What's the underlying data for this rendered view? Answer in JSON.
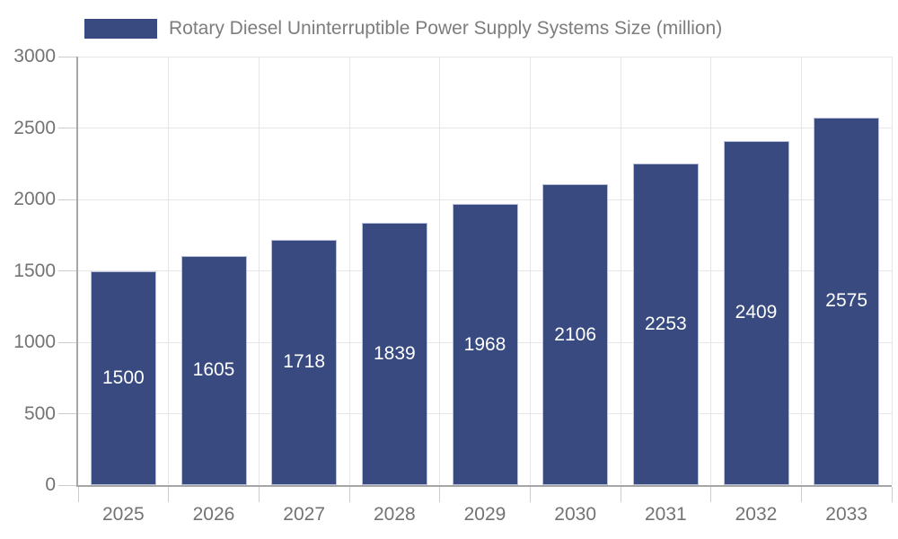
{
  "chart_data": {
    "type": "bar",
    "title": "Rotary Diesel Uninterruptible Power Supply Systems Size (million)",
    "categories": [
      "2025",
      "2026",
      "2027",
      "2028",
      "2029",
      "2030",
      "2031",
      "2032",
      "2033"
    ],
    "values": [
      1500,
      1605,
      1718,
      1839,
      1968,
      2106,
      2253,
      2409,
      2575
    ],
    "xlabel": "",
    "ylabel": "",
    "ylim": [
      0,
      3000
    ],
    "yticks": [
      0,
      500,
      1000,
      1500,
      2000,
      2500,
      3000
    ],
    "legend_position": "top",
    "grid": true,
    "bar_value_labels": "inside-center"
  },
  "colors": {
    "bar": "#384A80",
    "bar_edge": "#b9c1da",
    "axis": "#a6a6a6",
    "grid": "#e6e6e6",
    "tick": "#cccccc",
    "tick_label": "#737373",
    "legend_text": "#7d7d7d",
    "value_label": "#ffffff",
    "background": "#ffffff"
  }
}
